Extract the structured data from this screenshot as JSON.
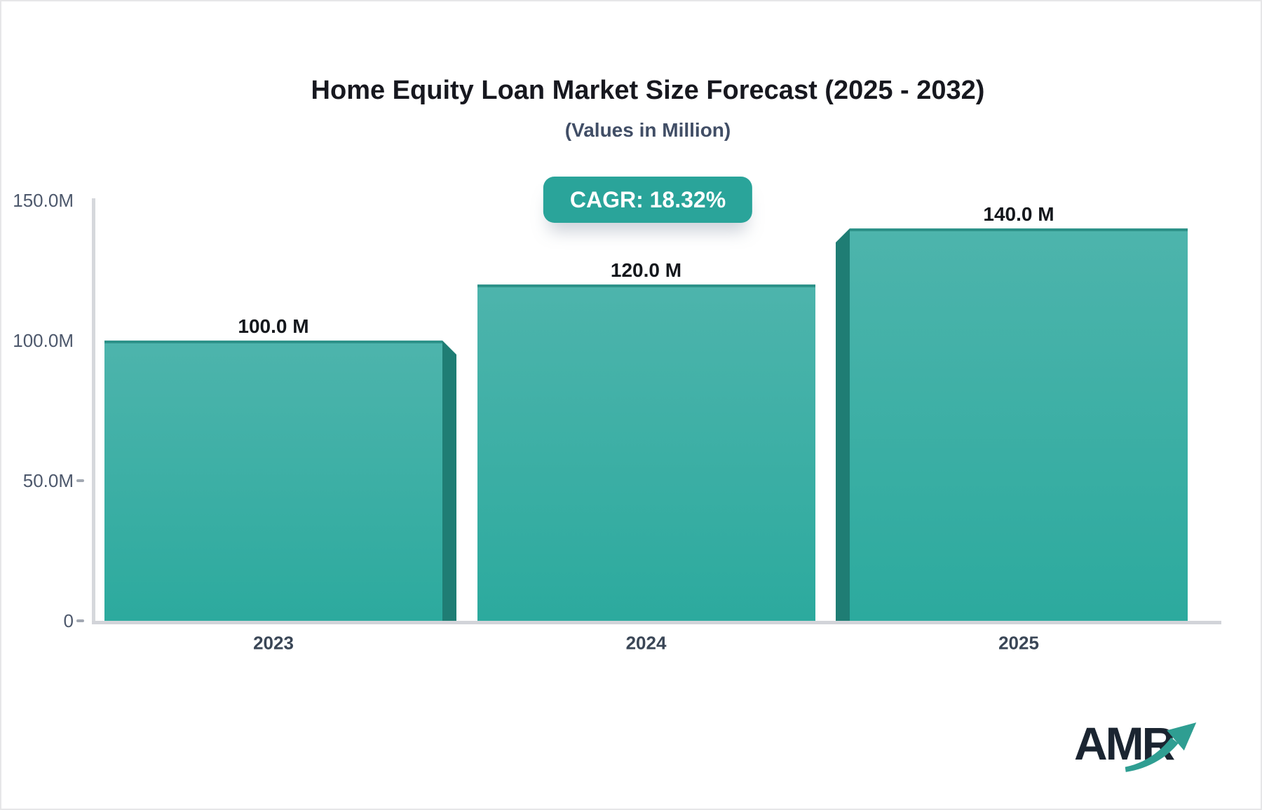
{
  "header": {
    "logo_text": "AMR"
  },
  "chart_data": {
    "type": "bar",
    "title": "Home Equity Loan Market Size Forecast (2025 - 2032)",
    "subtitle": "(Values in Million)",
    "annotation": "CAGR: 18.32%",
    "categories": [
      "2023",
      "2024",
      "2025"
    ],
    "values": [
      100,
      120,
      140
    ],
    "value_labels": [
      "100.0 M",
      "120.0 M",
      "140.0 M"
    ],
    "unit": "Million",
    "xlabel": "",
    "ylabel": "",
    "ylim": [
      0,
      150
    ],
    "y_ticks": [
      {
        "label": "150.0M",
        "value": 150,
        "dash": false
      },
      {
        "label": "100.0M",
        "value": 100,
        "dash": false
      },
      {
        "label": "50.0M",
        "value": 50,
        "dash": true
      },
      {
        "label": "0",
        "value": 0,
        "dash": true
      }
    ],
    "grid": false,
    "legend": false,
    "bar_style": {
      "extrusion": [
        "right",
        "none",
        "left"
      ]
    }
  },
  "colors": {
    "accent_teal": "#2aa49a",
    "bar_top": "#4db4ac",
    "bar_bottom": "#2caa9e",
    "bar_side": "#1f7d74",
    "bar_edge": "#2d9289",
    "axis_line": "#d6d8dc",
    "axis_text": "#4d586c",
    "title_text": "#17181f",
    "logo_navy": "#1b2531",
    "logo_arrow": "#2f9e92"
  }
}
